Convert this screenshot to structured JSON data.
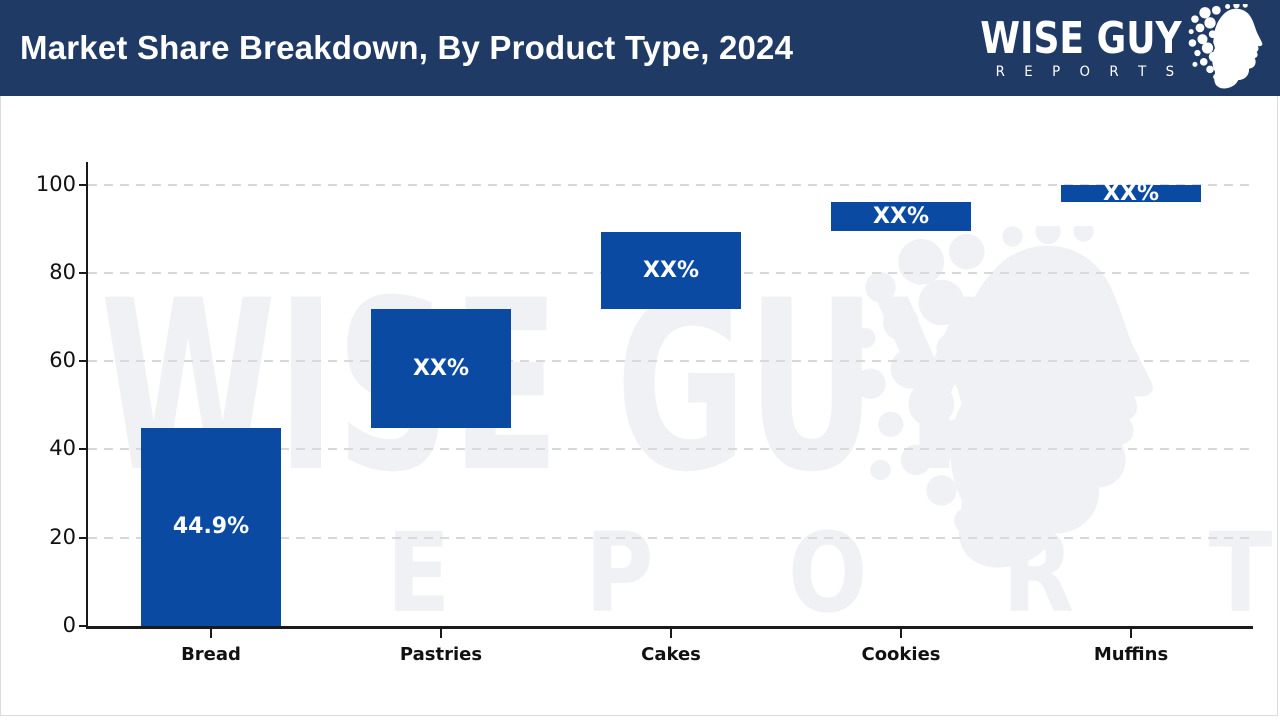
{
  "header": {
    "title": "Market Share Breakdown, By Product Type, 2024",
    "bg_color": "#203a66",
    "logo": {
      "wordmark": "WISE GUY",
      "subtext": "R E P O R T S"
    }
  },
  "watermark": {
    "wordmark": "WISE GUY",
    "subtext": "R E P O R T S"
  },
  "chart_data": {
    "type": "bar",
    "variant": "waterfall",
    "title": "Market Share Breakdown, By Product Type, 2024",
    "xlabel": "",
    "ylabel": "",
    "categories": [
      "Bread",
      "Pastries",
      "Cakes",
      "Cookies",
      "Muffins"
    ],
    "segments": [
      {
        "category": "Bread",
        "start": 0,
        "end": 44.9,
        "label": "44.9%"
      },
      {
        "category": "Pastries",
        "start": 44.9,
        "end": 71.8,
        "label": "XX%"
      },
      {
        "category": "Cakes",
        "start": 71.9,
        "end": 89.3,
        "label": "XX%"
      },
      {
        "category": "Cookies",
        "start": 89.4,
        "end": 96.0,
        "label": "XX%"
      },
      {
        "category": "Muffins",
        "start": 96.1,
        "end": 100,
        "label": "XX%"
      }
    ],
    "yticks": [
      0,
      20,
      40,
      60,
      80,
      100
    ],
    "ylim": [
      0,
      105
    ],
    "bar_color": "#0b4aa2",
    "bar_label_color": "#ffffff",
    "grid": {
      "visible": true,
      "style": "dashed",
      "color": "#d9d9d9",
      "axis": "y"
    },
    "legend": "none"
  }
}
